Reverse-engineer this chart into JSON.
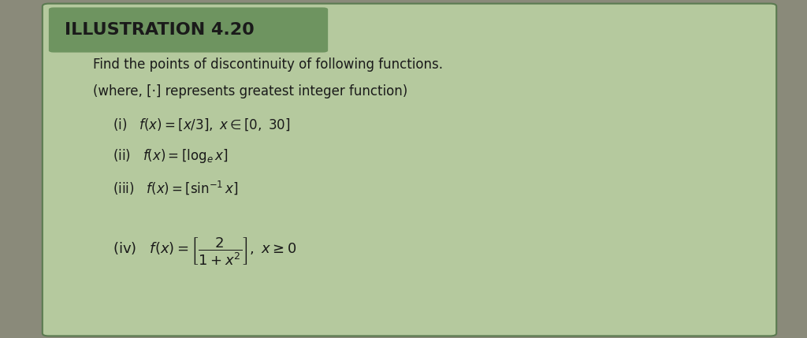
{
  "title": "ILLUSTRATION 4.20",
  "bg_color": "#b5c99e",
  "title_bg_color": "#6e9460",
  "title_text_color": "#1a1a1a",
  "text_color": "#1a1a1a",
  "outer_bg": "#8a8a7a",
  "intro_line1": "Find the points of discontinuity of following functions.",
  "intro_line2": "(where, [·] represents greatest integer function)",
  "item_i": "(i)   $f(x) = [x/3],\\ x \\in [0,\\ 30]$",
  "item_ii": "(ii)   $f(x) = [\\log_e x]$",
  "item_iii": "(iii)   $f(x) = [\\sin^{-1} x]$",
  "item_iv": "(iv)   $f(x) = \\left[\\dfrac{2}{1+x^2}\\right],\\ x \\geq 0$"
}
